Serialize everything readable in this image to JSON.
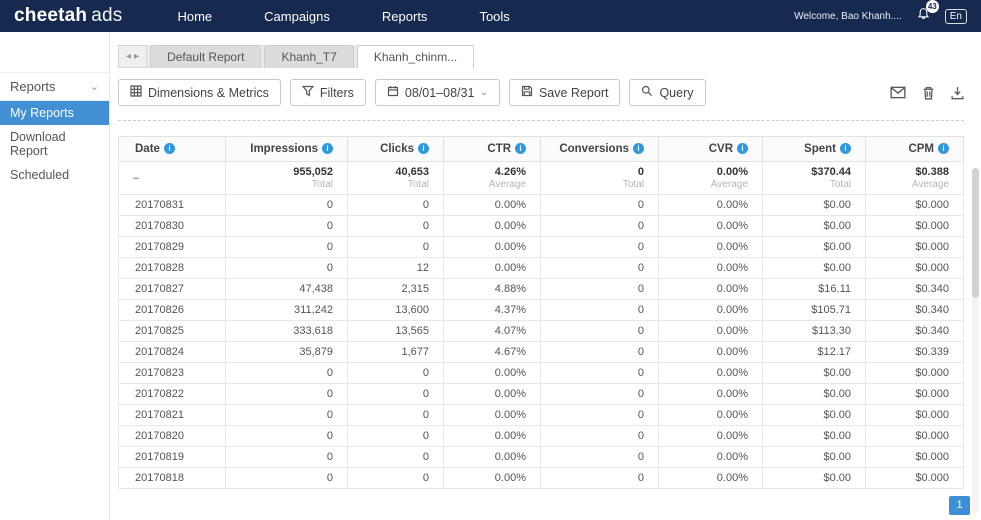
{
  "colors": {
    "navbar_bg": "#16294f",
    "accent": "#3d8fd8",
    "sidebar_active": "#4290d3",
    "info_icon": "#2e97dd"
  },
  "icons": {
    "info": "i",
    "chevron_down": "⌄",
    "tab_left": "◂",
    "tab_right": "▸",
    "date_caret": "⌄"
  },
  "navbar": {
    "brand_bold": "cheetah",
    "brand_light": "ads",
    "items": [
      {
        "label": "Home"
      },
      {
        "label": "Campaigns"
      },
      {
        "label": "Reports"
      },
      {
        "label": "Tools"
      }
    ],
    "welcome": "Welcome,  Bao Khanh....",
    "notification_count": "43",
    "language": "En"
  },
  "sidebar": {
    "section_label": "Reports",
    "items": [
      {
        "label": "My Reports",
        "active": true
      },
      {
        "label": "Download Report",
        "active": false
      },
      {
        "label": "Scheduled",
        "active": false
      }
    ]
  },
  "tabs": [
    {
      "label": "Default Report",
      "active": false
    },
    {
      "label": "Khanh_T7",
      "active": false
    },
    {
      "label": "Khanh_chinm...",
      "active": true
    }
  ],
  "toolbar": {
    "dimensions_metrics": "Dimensions & Metrics",
    "filters": "Filters",
    "date_range": "08/01–08/31",
    "save_report": "Save Report",
    "query": "Query"
  },
  "table": {
    "columns": [
      "Date",
      "Impressions",
      "Clicks",
      "CTR",
      "Conversions",
      "CVR",
      "Spent",
      "CPM"
    ],
    "totals": {
      "date": "–",
      "values": [
        "955,052",
        "40,653",
        "4.26%",
        "0",
        "0.00%",
        "$370.44",
        "$0.388"
      ],
      "sublabels": [
        "Total",
        "Total",
        "Average",
        "Total",
        "Average",
        "Total",
        "Average"
      ]
    },
    "rows": [
      [
        "20170831",
        "0",
        "0",
        "0.00%",
        "0",
        "0.00%",
        "$0.00",
        "$0.000"
      ],
      [
        "20170830",
        "0",
        "0",
        "0.00%",
        "0",
        "0.00%",
        "$0.00",
        "$0.000"
      ],
      [
        "20170829",
        "0",
        "0",
        "0.00%",
        "0",
        "0.00%",
        "$0.00",
        "$0.000"
      ],
      [
        "20170828",
        "0",
        "12",
        "0.00%",
        "0",
        "0.00%",
        "$0.00",
        "$0.000"
      ],
      [
        "20170827",
        "47,438",
        "2,315",
        "4.88%",
        "0",
        "0.00%",
        "$16.11",
        "$0.340"
      ],
      [
        "20170826",
        "311,242",
        "13,600",
        "4.37%",
        "0",
        "0.00%",
        "$105.71",
        "$0.340"
      ],
      [
        "20170825",
        "333,618",
        "13,565",
        "4.07%",
        "0",
        "0.00%",
        "$113.30",
        "$0.340"
      ],
      [
        "20170824",
        "35,879",
        "1,677",
        "4.67%",
        "0",
        "0.00%",
        "$12.17",
        "$0.339"
      ],
      [
        "20170823",
        "0",
        "0",
        "0.00%",
        "0",
        "0.00%",
        "$0.00",
        "$0.000"
      ],
      [
        "20170822",
        "0",
        "0",
        "0.00%",
        "0",
        "0.00%",
        "$0.00",
        "$0.000"
      ],
      [
        "20170821",
        "0",
        "0",
        "0.00%",
        "0",
        "0.00%",
        "$0.00",
        "$0.000"
      ],
      [
        "20170820",
        "0",
        "0",
        "0.00%",
        "0",
        "0.00%",
        "$0.00",
        "$0.000"
      ],
      [
        "20170819",
        "0",
        "0",
        "0.00%",
        "0",
        "0.00%",
        "$0.00",
        "$0.000"
      ],
      [
        "20170818",
        "0",
        "0",
        "0.00%",
        "0",
        "0.00%",
        "$0.00",
        "$0.000"
      ]
    ]
  },
  "pagination": {
    "current": "1"
  }
}
